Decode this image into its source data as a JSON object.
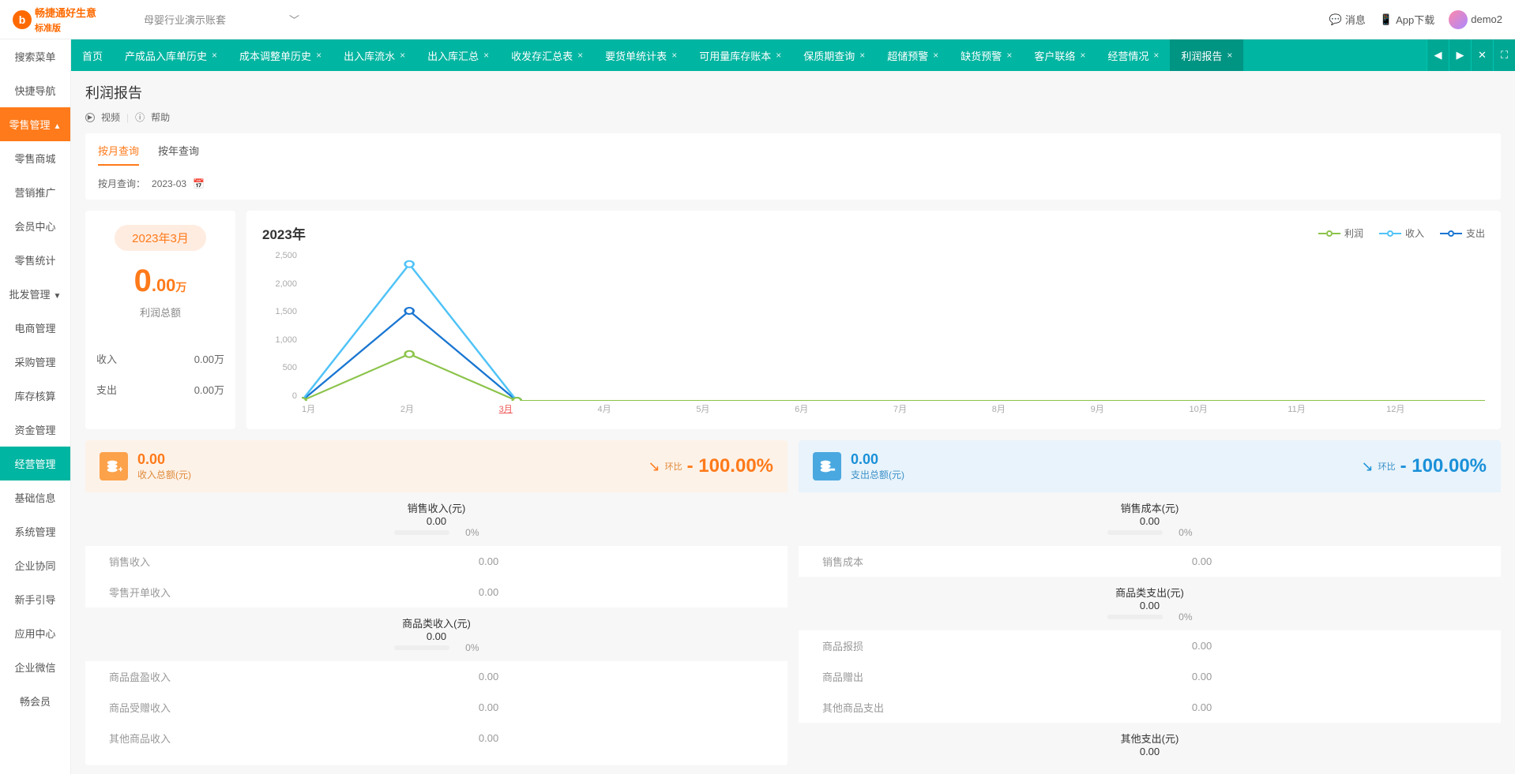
{
  "header": {
    "logo_text": "畅捷通好生意",
    "logo_sub": "标准版",
    "account": "母婴行业演示账套",
    "msg": "消息",
    "download": "App下载",
    "user": "demo2"
  },
  "sidebar": {
    "items": [
      {
        "label": "搜索菜单",
        "active": ""
      },
      {
        "label": "快捷导航",
        "active": ""
      },
      {
        "label": "零售管理",
        "active": "orange",
        "caret": "▲"
      },
      {
        "label": "零售商城",
        "active": ""
      },
      {
        "label": "营销推广",
        "active": ""
      },
      {
        "label": "会员中心",
        "active": ""
      },
      {
        "label": "零售统计",
        "active": ""
      },
      {
        "label": "批发管理",
        "active": "",
        "caret": "▼"
      },
      {
        "label": "电商管理",
        "active": ""
      },
      {
        "label": "采购管理",
        "active": ""
      },
      {
        "label": "库存核算",
        "active": ""
      },
      {
        "label": "资金管理",
        "active": ""
      },
      {
        "label": "经营管理",
        "active": "teal"
      },
      {
        "label": "基础信息",
        "active": ""
      },
      {
        "label": "系统管理",
        "active": ""
      },
      {
        "label": "企业协同",
        "active": ""
      },
      {
        "label": "新手引导",
        "active": ""
      },
      {
        "label": "应用中心",
        "active": ""
      },
      {
        "label": "企业微信",
        "active": ""
      },
      {
        "label": "畅会员",
        "active": ""
      }
    ]
  },
  "tabs": {
    "items": [
      {
        "label": "首页",
        "close": false
      },
      {
        "label": "产成品入库单历史",
        "close": true
      },
      {
        "label": "成本调整单历史",
        "close": true
      },
      {
        "label": "出入库流水",
        "close": true
      },
      {
        "label": "出入库汇总",
        "close": true
      },
      {
        "label": "收发存汇总表",
        "close": true
      },
      {
        "label": "要货单统计表",
        "close": true
      },
      {
        "label": "可用量库存账本",
        "close": true
      },
      {
        "label": "保质期查询",
        "close": true
      },
      {
        "label": "超储预警",
        "close": true
      },
      {
        "label": "缺货预警",
        "close": true
      },
      {
        "label": "客户联络",
        "close": true
      },
      {
        "label": "经营情况",
        "close": true
      },
      {
        "label": "利润报告",
        "close": true,
        "active": true
      }
    ]
  },
  "page": {
    "title": "利润报告",
    "video": "视频",
    "help": "帮助",
    "sub_tabs": {
      "monthly": "按月查询",
      "yearly": "按年查询"
    },
    "filter_label": "按月查询：",
    "filter_value": "2023-03"
  },
  "summary": {
    "month_label": "2023年3月",
    "big_int": "0",
    "big_dec": ".00",
    "big_unit": "万",
    "profit_label": "利润总额",
    "income_label": "收入",
    "income_value": "0.00万",
    "expense_label": "支出",
    "expense_value": "0.00万"
  },
  "chart": {
    "title": "2023年",
    "legend": {
      "profit": "利润",
      "income": "收入",
      "expense": "支出"
    },
    "colors": {
      "profit": "#8bc34a",
      "income": "#4fc3f7",
      "expense": "#1976d2"
    },
    "y_ticks": [
      "2,500",
      "2,000",
      "1,500",
      "1,000",
      "500",
      "0"
    ],
    "y_max": 2500,
    "x_labels": [
      "1月",
      "2月",
      "3月",
      "4月",
      "5月",
      "6月",
      "7月",
      "8月",
      "9月",
      "10月",
      "11月",
      "12月"
    ],
    "highlight_index": 2,
    "series": {
      "profit": [
        0,
        780,
        0,
        0,
        0,
        0,
        0,
        0,
        0,
        0,
        0,
        0
      ],
      "income": [
        0,
        2280,
        0,
        0,
        0,
        0,
        0,
        0,
        0,
        0,
        0,
        0
      ],
      "expense": [
        0,
        1500,
        0,
        0,
        0,
        0,
        0,
        0,
        0,
        0,
        0,
        0
      ]
    }
  },
  "income_panel": {
    "value": "0.00",
    "label": "收入总额(元)",
    "delta_label": "环比",
    "delta_value": "- 100.00%",
    "rows": [
      {
        "name": "销售收入(元)",
        "val": "0.00",
        "type": "main",
        "pct": "0%"
      },
      {
        "name": "销售收入",
        "val": "0.00",
        "type": "sub"
      },
      {
        "name": "零售开单收入",
        "val": "0.00",
        "type": "sub"
      },
      {
        "name": "商品类收入(元)",
        "val": "0.00",
        "type": "main",
        "pct": "0%"
      },
      {
        "name": "商品盘盈收入",
        "val": "0.00",
        "type": "sub"
      },
      {
        "name": "商品受赠收入",
        "val": "0.00",
        "type": "sub"
      },
      {
        "name": "其他商品收入",
        "val": "0.00",
        "type": "sub"
      }
    ]
  },
  "expense_panel": {
    "value": "0.00",
    "label": "支出总额(元)",
    "delta_label": "环比",
    "delta_value": "- 100.00%",
    "rows": [
      {
        "name": "销售成本(元)",
        "val": "0.00",
        "type": "main",
        "pct": "0%"
      },
      {
        "name": "销售成本",
        "val": "0.00",
        "type": "sub"
      },
      {
        "name": "商品类支出(元)",
        "val": "0.00",
        "type": "main",
        "pct": "0%"
      },
      {
        "name": "商品报损",
        "val": "0.00",
        "type": "sub"
      },
      {
        "name": "商品赠出",
        "val": "0.00",
        "type": "sub"
      },
      {
        "name": "其他商品支出",
        "val": "0.00",
        "type": "sub"
      },
      {
        "name": "其他支出(元)",
        "val": "0.00",
        "type": "main"
      }
    ]
  }
}
